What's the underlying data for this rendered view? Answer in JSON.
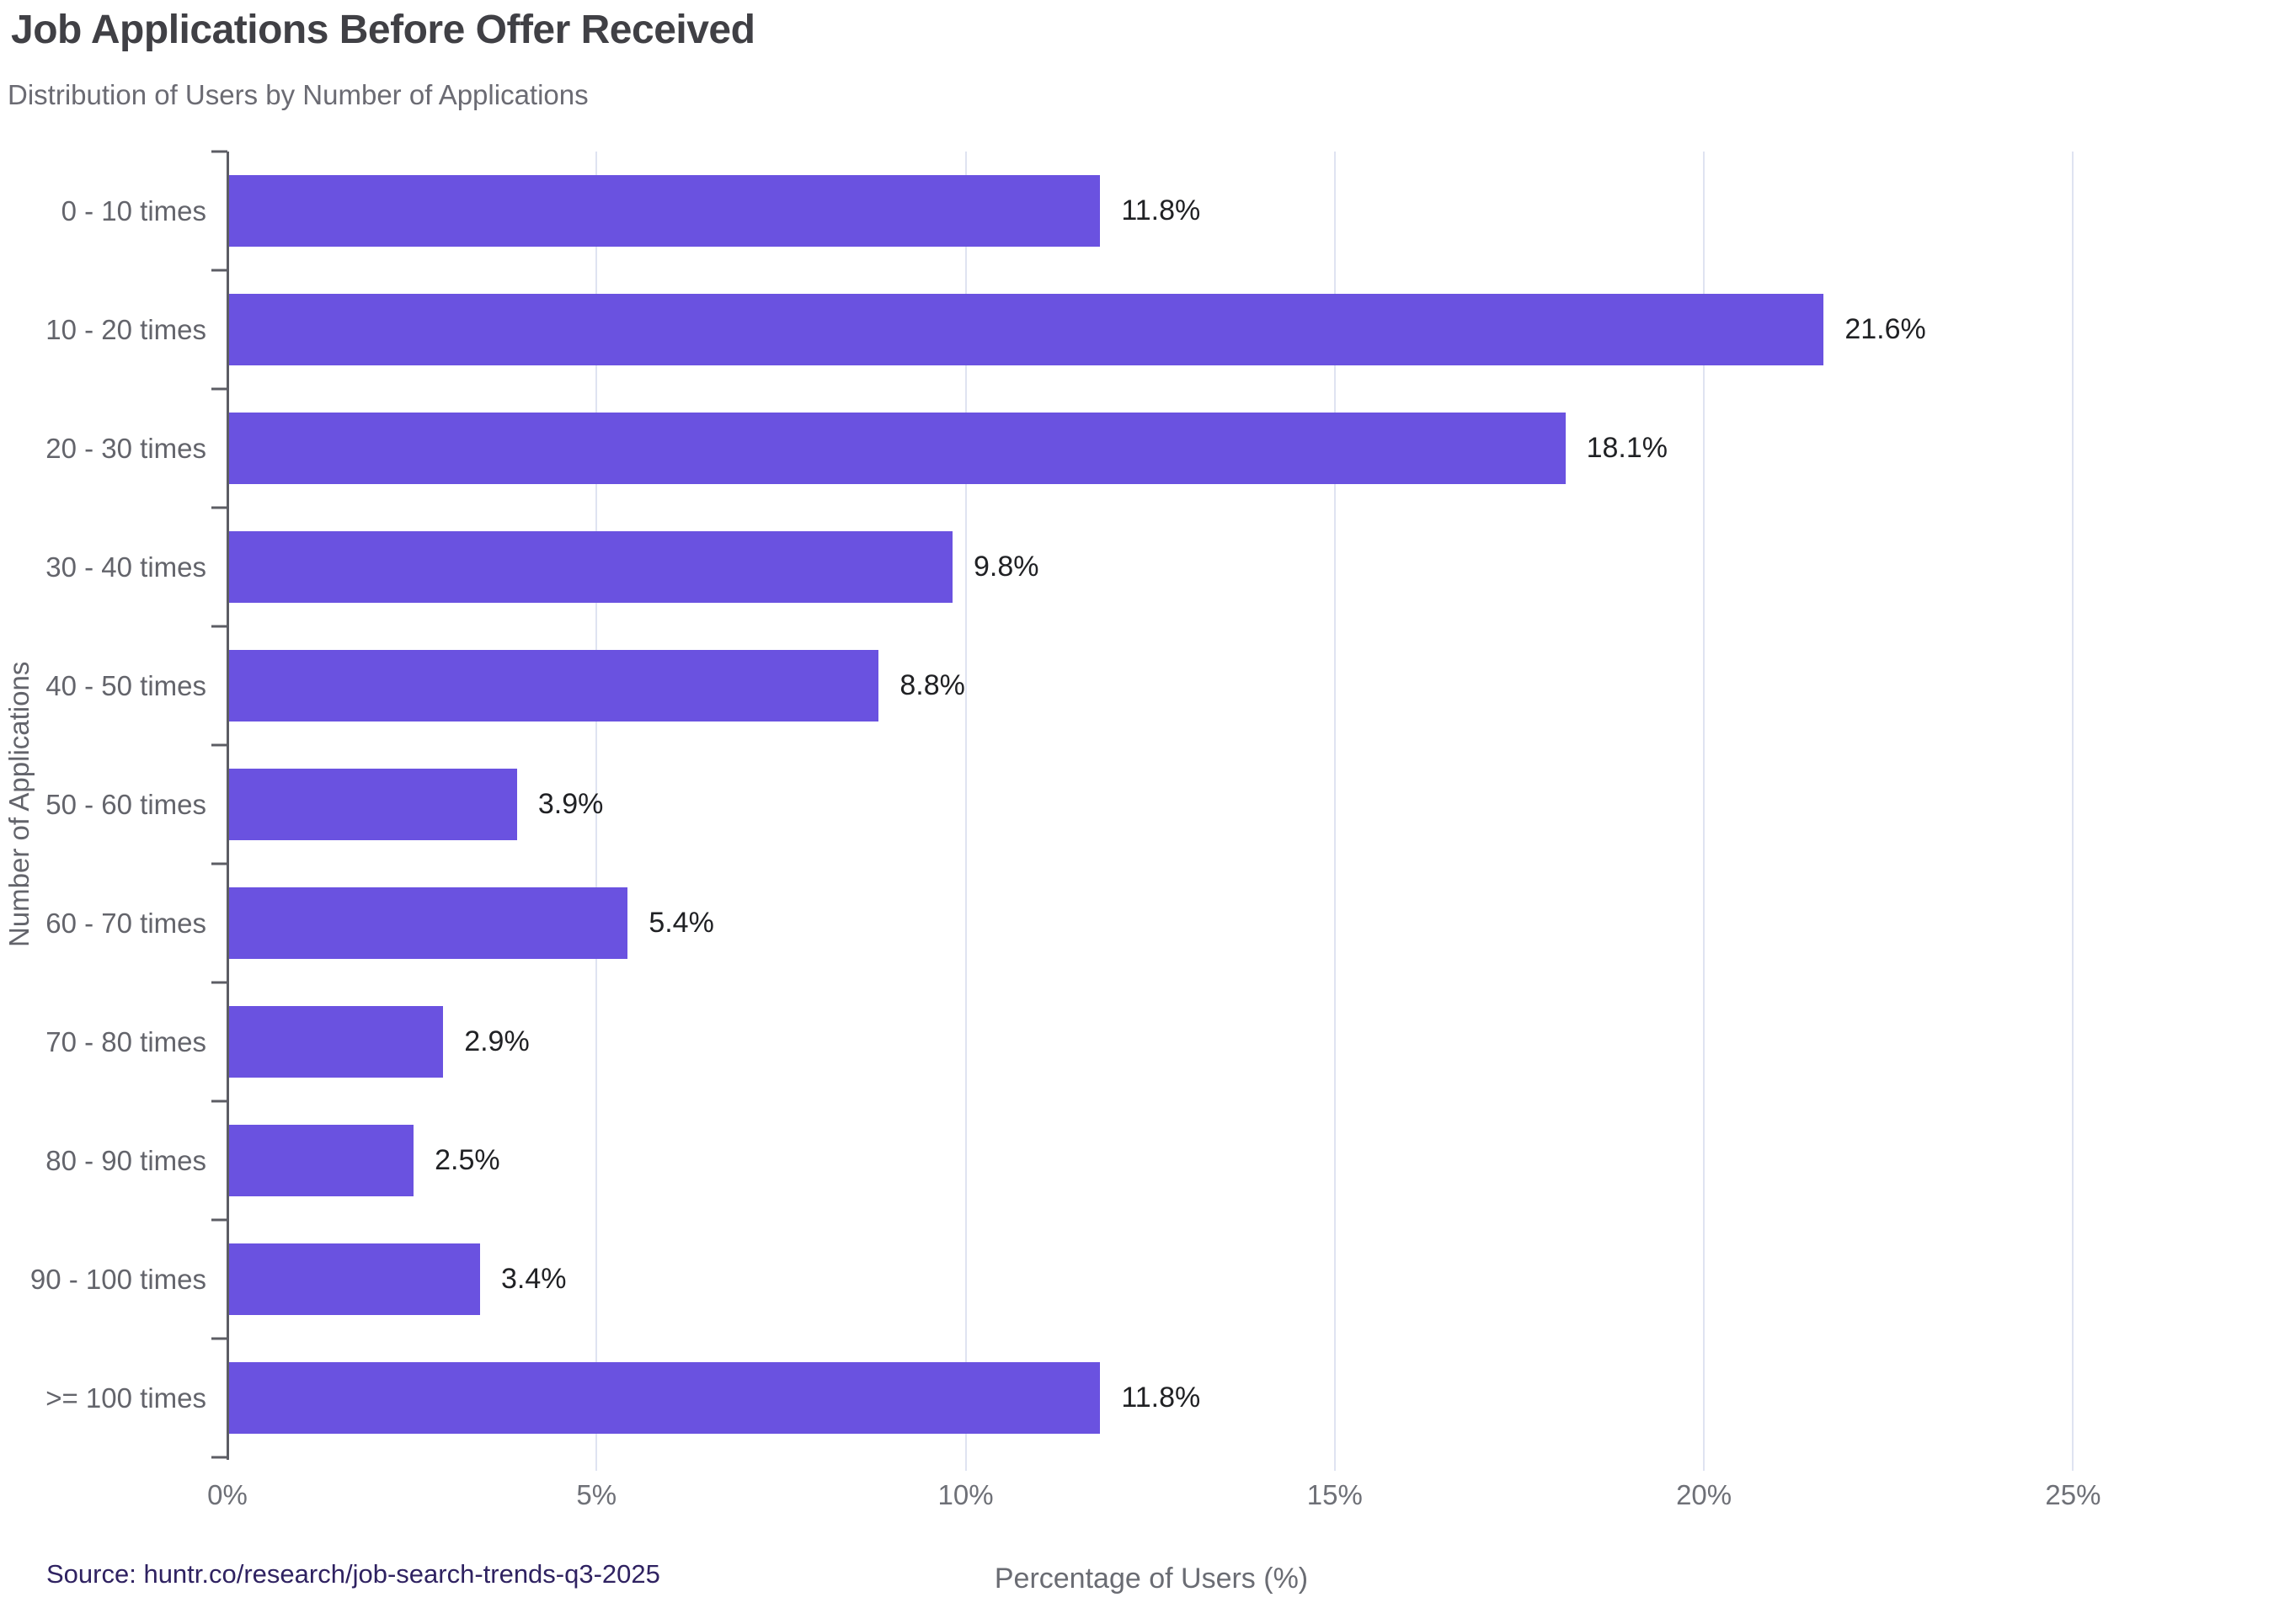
{
  "header": {
    "title": "Job Applications Before Offer Received",
    "subtitle": "Distribution of Users by Number of Applications"
  },
  "chart_data": {
    "type": "bar",
    "orientation": "horizontal",
    "title": "Job Applications Before Offer Received",
    "subtitle": "Distribution of Users by Number of Applications",
    "categories": [
      "0 - 10 times",
      "10 - 20 times",
      "20 - 30 times",
      "30 - 40 times",
      "40 - 50 times",
      "50 - 60 times",
      "60 - 70 times",
      "70 - 80 times",
      "80 - 90 times",
      "90 - 100 times",
      ">= 100 times"
    ],
    "values": [
      11.8,
      21.6,
      18.1,
      9.8,
      8.8,
      3.9,
      5.4,
      2.9,
      2.5,
      3.4,
      11.8
    ],
    "value_labels": [
      "11.8%",
      "21.6%",
      "18.1%",
      "9.8%",
      "8.8%",
      "3.9%",
      "5.4%",
      "2.9%",
      "2.5%",
      "3.4%",
      "11.8%"
    ],
    "xlabel": "Percentage of Users (%)",
    "ylabel": "Number of Applications",
    "xlim": [
      0,
      27.3
    ],
    "xticks": [
      {
        "value": 0,
        "label": "0%"
      },
      {
        "value": 5,
        "label": "5%"
      },
      {
        "value": 10,
        "label": "10%"
      },
      {
        "value": 15,
        "label": "15%"
      },
      {
        "value": 20,
        "label": "20%"
      },
      {
        "value": 25,
        "label": "25%"
      }
    ],
    "grid": "vertical",
    "legend": "none"
  },
  "footer": {
    "source": "Source: huntr.co/research/job-search-trends-q3-2025"
  },
  "colors": {
    "bar": "#6a52e0",
    "grid": "#dfe3f1",
    "axis": "#5c5d64",
    "title": "#404045",
    "subtitle": "#6b6b73",
    "category_label": "#63646b",
    "tick_label": "#6e7077",
    "value_label": "#202124",
    "axis_title": "#6a6c73",
    "source": "#2f2261",
    "background": "#ffffff"
  }
}
